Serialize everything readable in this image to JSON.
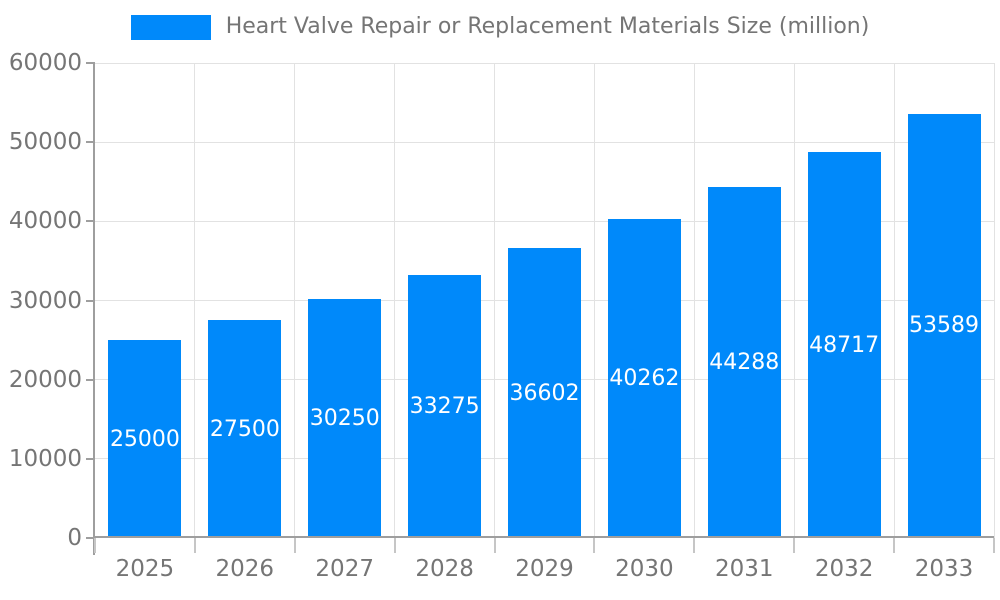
{
  "chart_data": {
    "type": "bar",
    "title": "Heart Valve Repair or Replacement Materials Size (million)",
    "legend_position": "top",
    "categories": [
      "2025",
      "2026",
      "2027",
      "2028",
      "2029",
      "2030",
      "2031",
      "2032",
      "2033"
    ],
    "series": [
      {
        "name": "Heart Valve Repair or Replacement Materials Size (million)",
        "values": [
          25000,
          27500,
          30250,
          33275,
          36602,
          40262,
          44288,
          48717,
          53589
        ]
      }
    ],
    "bar_value_labels": [
      "25000",
      "27500",
      "30250",
      "33275",
      "36602",
      "40262",
      "44288",
      "48717",
      "53589"
    ],
    "xlabel": "",
    "ylabel": "",
    "ylim": [
      0,
      60000
    ],
    "y_ticks": [
      "0",
      "10000",
      "20000",
      "30000",
      "40000",
      "50000",
      "60000"
    ],
    "grid": true,
    "bar_labels_inside": true,
    "colors": {
      "bar": "#0089FA",
      "axis_text": "#757575",
      "legend_text": "#757575",
      "bar_label_text": "#FFFFFF",
      "grid_line": "#E2E2E2",
      "axis_line": "#9E9E9E",
      "tick_mark": "#C6C6C6",
      "background": "#FFFFFF"
    }
  }
}
